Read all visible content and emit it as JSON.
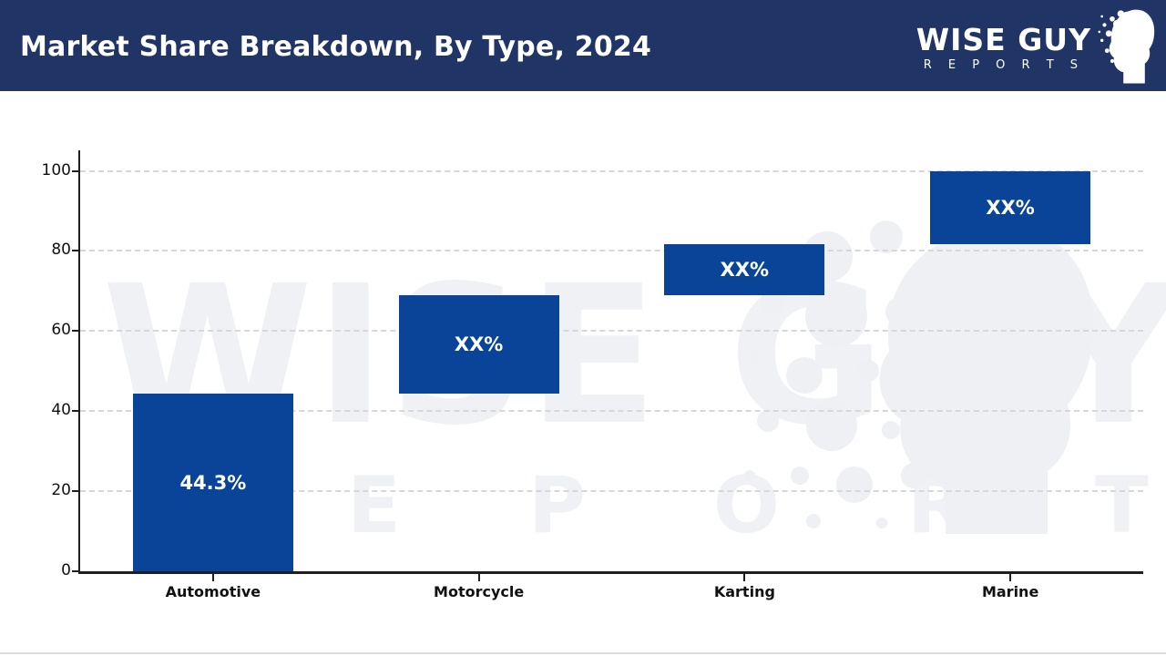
{
  "header": {
    "title": "Market Share Breakdown, By Type, 2024",
    "bg_color": "#203565",
    "logo": {
      "line1": "WISE GUY",
      "line2": "R E P O R T S"
    }
  },
  "watermark": {
    "line1": "WISE GUY",
    "line2": "R E P O R T S"
  },
  "chart_data": {
    "type": "bar",
    "subtype": "waterfall-breakdown",
    "title": "Market Share Breakdown, By Type, 2024",
    "categories": [
      "Automotive",
      "Motorcycle",
      "Karting",
      "Marine"
    ],
    "segments": [
      {
        "category": "Automotive",
        "start": 0,
        "end": 44.3,
        "label": "44.3%"
      },
      {
        "category": "Motorcycle",
        "start": 44.3,
        "end": 68.9,
        "label": "XX%"
      },
      {
        "category": "Karting",
        "start": 68.9,
        "end": 81.6,
        "label": "XX%"
      },
      {
        "category": "Marine",
        "start": 81.6,
        "end": 100,
        "label": "XX%"
      }
    ],
    "y_ticks": [
      0,
      20,
      40,
      60,
      80,
      100
    ],
    "ylim": [
      0,
      105
    ],
    "xlabel": "",
    "ylabel": "",
    "grid": "horizontal-dashed",
    "legend": "none",
    "bar_color": "#0a4499",
    "bar_label_color": "#ffffff",
    "axis_color": "#1f1f1f"
  }
}
